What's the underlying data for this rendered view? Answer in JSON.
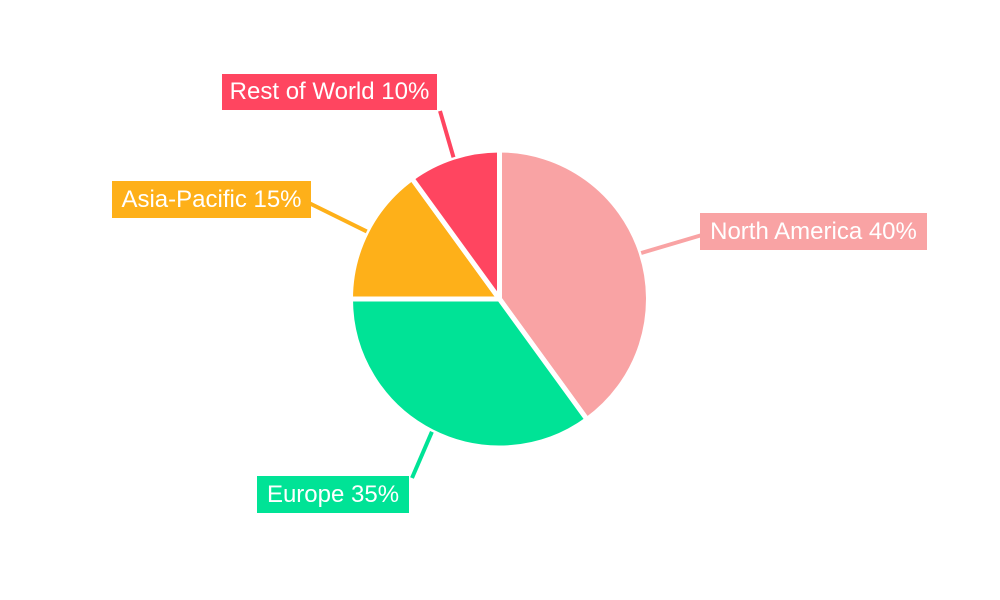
{
  "chart_data": {
    "type": "pie",
    "title": "",
    "categories": [
      "North America",
      "Europe",
      "Asia-Pacific",
      "Rest of World"
    ],
    "values": [
      40,
      35,
      15,
      10
    ],
    "unit": "%",
    "labels": [
      "North America 40%",
      "Europe 35%",
      "Asia-Pacific 15%",
      "Rest of World 10%"
    ],
    "colors": [
      "#F9A3A4",
      "#00E396",
      "#FEB019",
      "#FF4560"
    ],
    "slice_gap_color": "#FFFFFF",
    "label_text_color": "#FFFFFF",
    "start_angle_deg": 0,
    "direction": "clockwise",
    "legend_position": "none",
    "background": "#FFFFFF"
  }
}
